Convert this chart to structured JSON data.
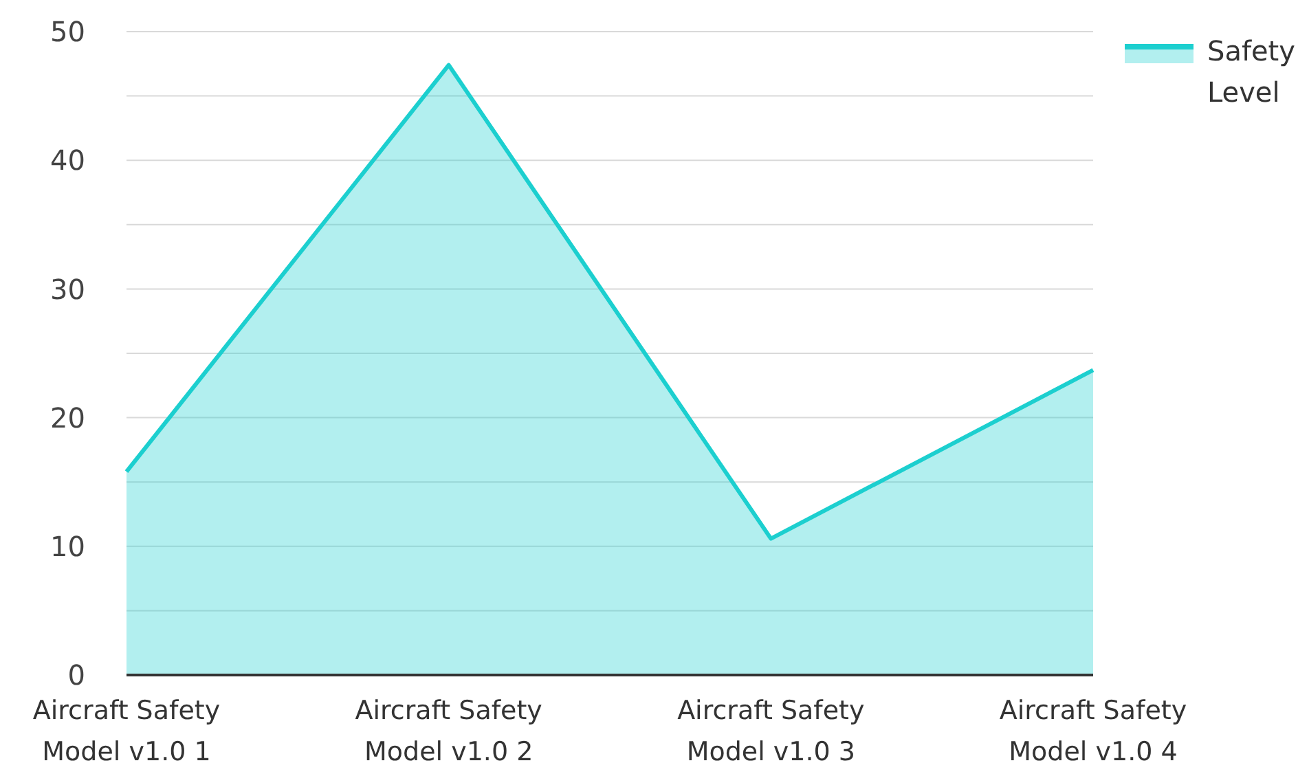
{
  "chart_data": {
    "type": "area",
    "categories": [
      "Aircraft Safety Model v1.0 1",
      "Aircraft Safety Model v1.0 2",
      "Aircraft Safety Model v1.0 3",
      "Aircraft Safety Model v1.0 4"
    ],
    "series": [
      {
        "name": "Safety Level",
        "color": "#1ccfcf",
        "values": [
          15.8,
          47.4,
          10.6,
          23.7
        ]
      }
    ],
    "ylim": [
      0,
      50
    ],
    "yticks": [
      0,
      {
        "value": 5,
        "label": null
      },
      10,
      {
        "value": 15,
        "label": null
      },
      20,
      {
        "value": 25,
        "label": null
      },
      30,
      {
        "value": 35,
        "label": null
      },
      40,
      {
        "value": 45,
        "label": null
      },
      50
    ],
    "grid": "y",
    "legend": "top right"
  }
}
